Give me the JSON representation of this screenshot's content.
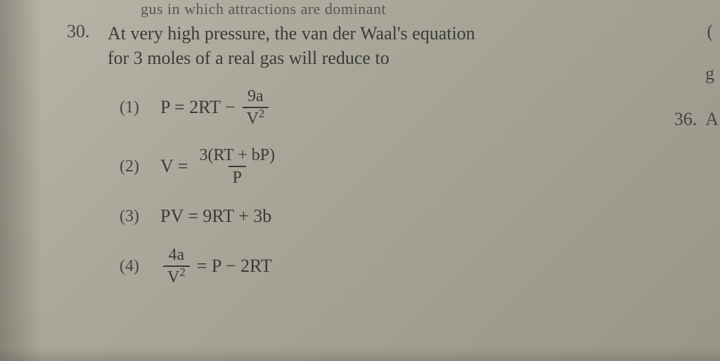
{
  "partial_header": "gus in which attractions are dominant",
  "question": {
    "number": "30.",
    "text_line1": "At very high pressure, the van der Waal's equation",
    "text_line2": "for 3 moles of a real gas will reduce to"
  },
  "options": {
    "opt1": {
      "num": "(1)",
      "prefix": "P = 2RT −",
      "frac_num": "9a",
      "frac_den": "V"
    },
    "opt2": {
      "num": "(2)",
      "prefix": "V =",
      "frac_num": "3(RT + bP)",
      "frac_den": "P"
    },
    "opt3": {
      "num": "(3)",
      "text": "PV = 9RT + 3b"
    },
    "opt4": {
      "num": "(4)",
      "frac_num": "4a",
      "frac_den": "V",
      "suffix": "= P − 2RT"
    }
  },
  "right_cut": {
    "paren": "(",
    "g": "g",
    "num36": "36.",
    "letterA": "A"
  }
}
